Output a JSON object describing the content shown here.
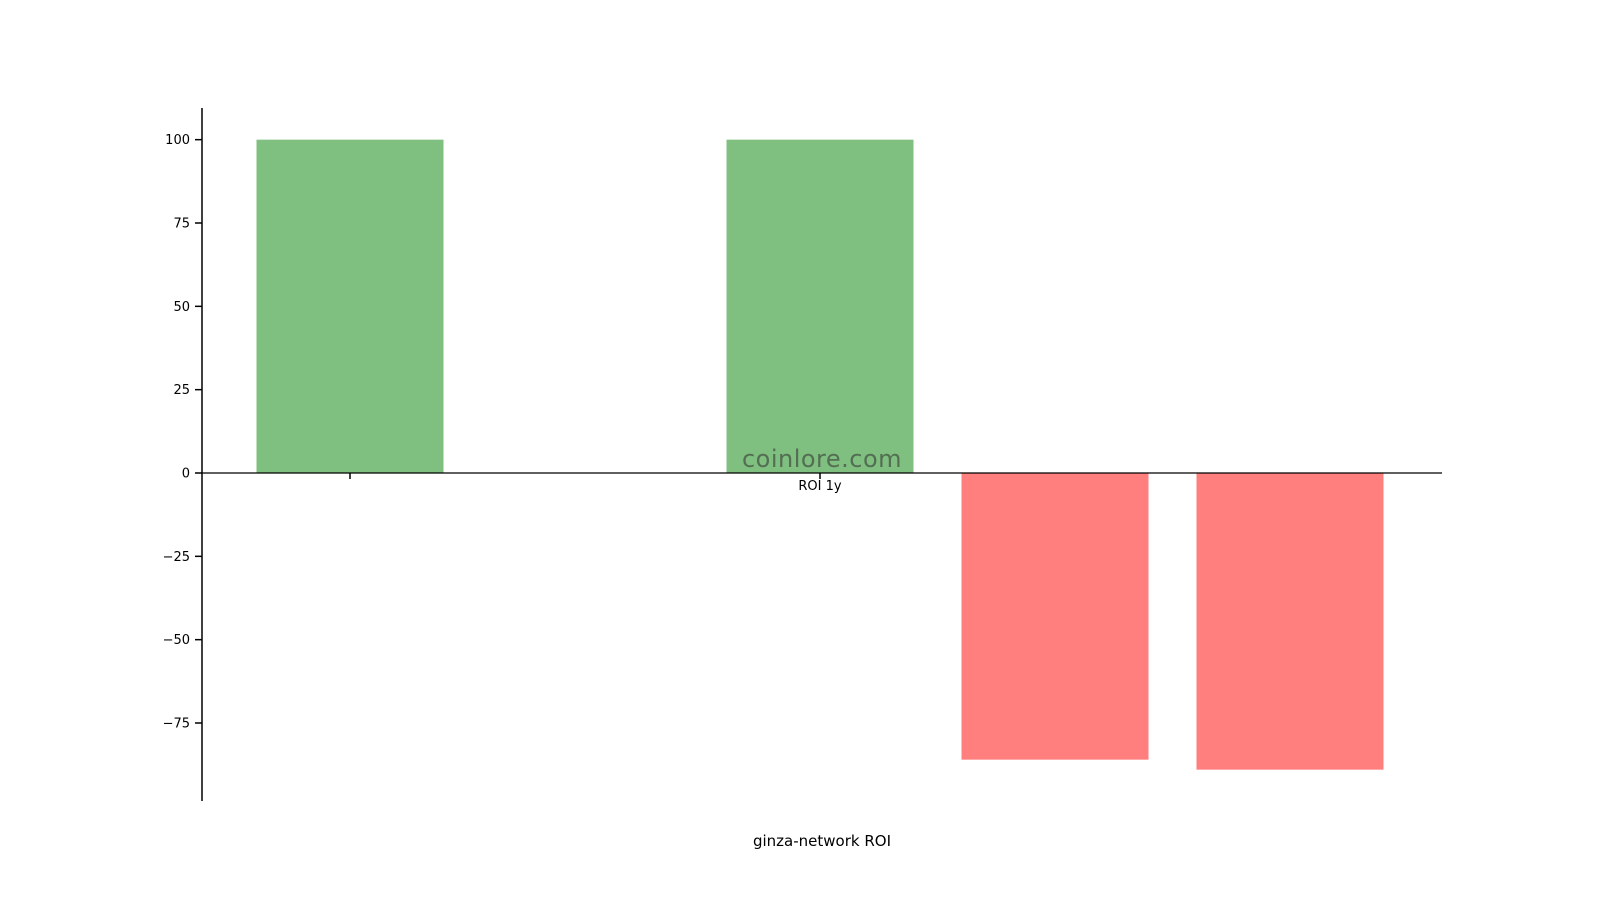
{
  "chart_data": {
    "type": "bar",
    "watermark": "coinlore.com",
    "xlabel": "ginza-network ROI",
    "categories": [
      "",
      "",
      "ROI 1y",
      "",
      ""
    ],
    "values": [
      100,
      0,
      100,
      -86,
      -89
    ],
    "xtick_slots": [
      0,
      2
    ],
    "yticks": [
      100,
      75,
      50,
      25,
      0,
      -25,
      -50,
      -75
    ],
    "ylim": [
      -98.4,
      109.5
    ],
    "grid": false,
    "legend": "none",
    "colors": {
      "positive": "#7fbf7f",
      "negative": "#ff7f7f",
      "axis": "#000000",
      "tick_label": "#000000"
    }
  }
}
